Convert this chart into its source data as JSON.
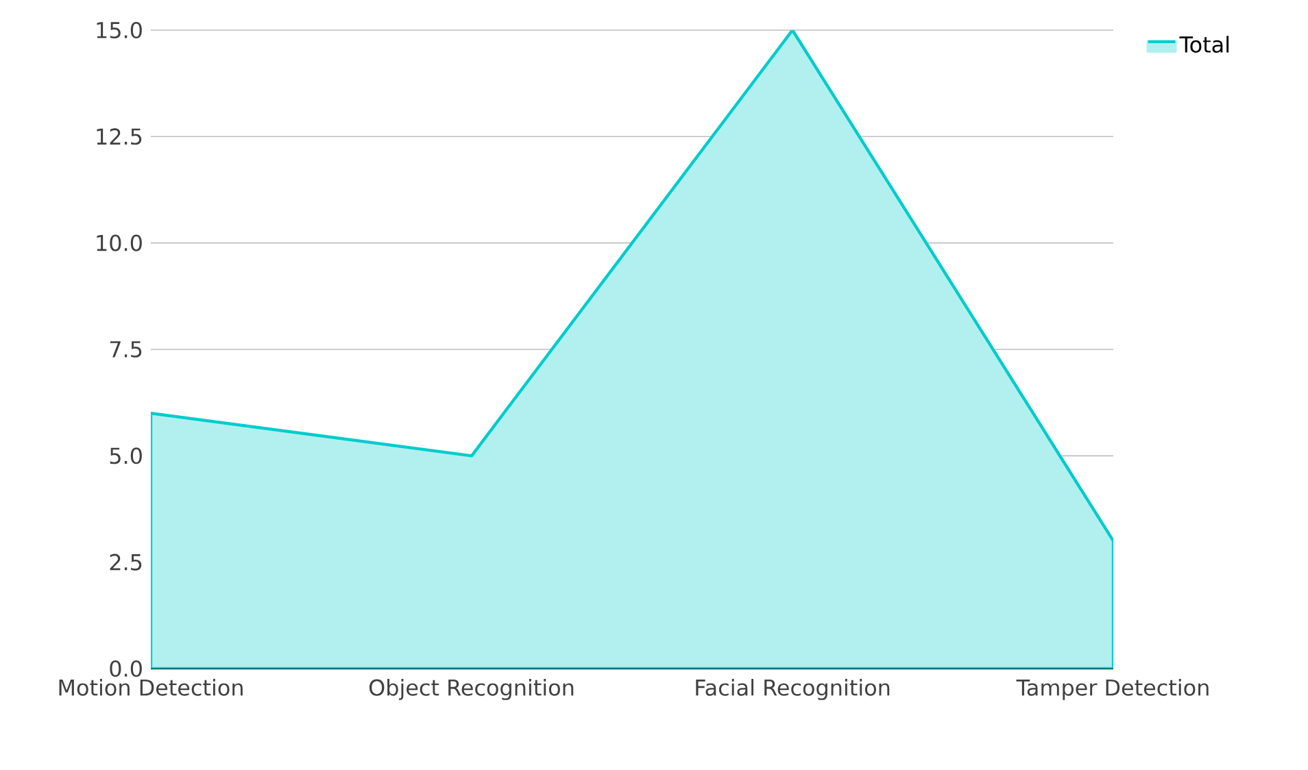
{
  "chart_data": {
    "type": "area",
    "categories": [
      "Motion Detection",
      "Object Recognition",
      "Facial Recognition",
      "Tamper Detection"
    ],
    "series": [
      {
        "name": "Total",
        "color": "#00cccc",
        "values": [
          6,
          5,
          15,
          3
        ]
      }
    ],
    "ylim": [
      0,
      15
    ],
    "yticks": [
      {
        "value": 0,
        "label": "0.0"
      },
      {
        "value": 2.5,
        "label": "2.5"
      },
      {
        "value": 5,
        "label": "5.0"
      },
      {
        "value": 7.5,
        "label": "7.5"
      },
      {
        "value": 10,
        "label": "10.0"
      },
      {
        "value": 12.5,
        "label": "12.5"
      },
      {
        "value": 15,
        "label": "15.0"
      }
    ],
    "grid": "y",
    "legend": "top right"
  }
}
